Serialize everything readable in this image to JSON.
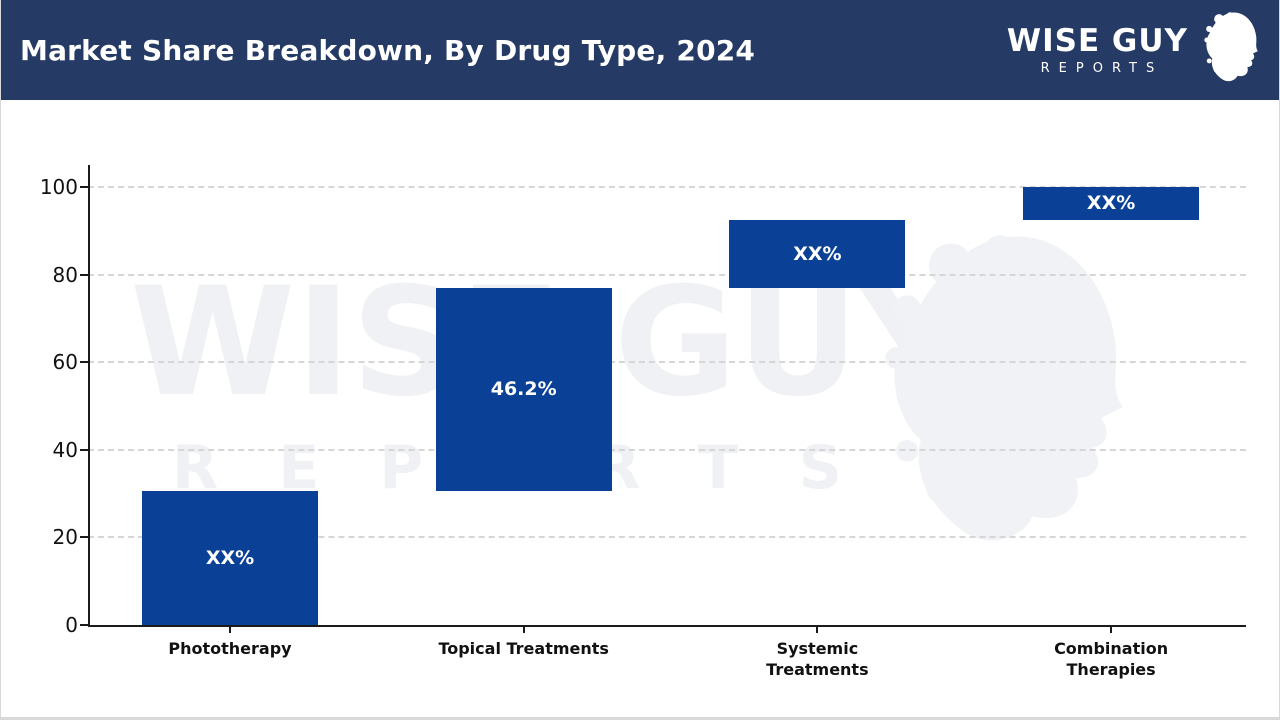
{
  "header": {
    "title": "Market Share Breakdown, By Drug Type, 2024",
    "logo": {
      "name": "WISE GUY",
      "subname": "REPORTS"
    }
  },
  "watermark": {
    "line1": "WISE GUY",
    "line2": "REPORTS"
  },
  "chart_data": {
    "type": "bar",
    "subtype": "waterfall",
    "title": "Market Share Breakdown, By Drug Type, 2024",
    "xlabel": "",
    "ylabel": "",
    "ylim": [
      0,
      105
    ],
    "yticks": [
      0,
      20,
      40,
      60,
      80,
      100
    ],
    "grid": "horizontal-dashed",
    "legend": "none",
    "categories": [
      "Phototherapy",
      "Topical Treatments",
      "Systemic Treatments",
      "Combination Therapies"
    ],
    "bars": [
      {
        "category": "Phototherapy",
        "category_lines": [
          "Phototherapy"
        ],
        "start": 0,
        "end": 30.7,
        "value": 30.7,
        "value_label": "XX%"
      },
      {
        "category": "Topical Treatments",
        "category_lines": [
          "Topical Treatments"
        ],
        "start": 30.7,
        "end": 76.9,
        "value": 46.2,
        "value_label": "46.2%"
      },
      {
        "category": "Systemic Treatments",
        "category_lines": [
          "Systemic",
          "Treatments"
        ],
        "start": 76.9,
        "end": 92.5,
        "value": 15.6,
        "value_label": "XX%"
      },
      {
        "category": "Combination Therapies",
        "category_lines": [
          "Combination",
          "Therapies"
        ],
        "start": 92.5,
        "end": 100,
        "value": 7.5,
        "value_label": "XX%"
      }
    ]
  },
  "colors": {
    "header_bg": "#253a64",
    "bar": "#0a4196",
    "grid": "#d6d6d6",
    "axis": "#1a1a1a",
    "watermark": "#f0f1f4"
  }
}
